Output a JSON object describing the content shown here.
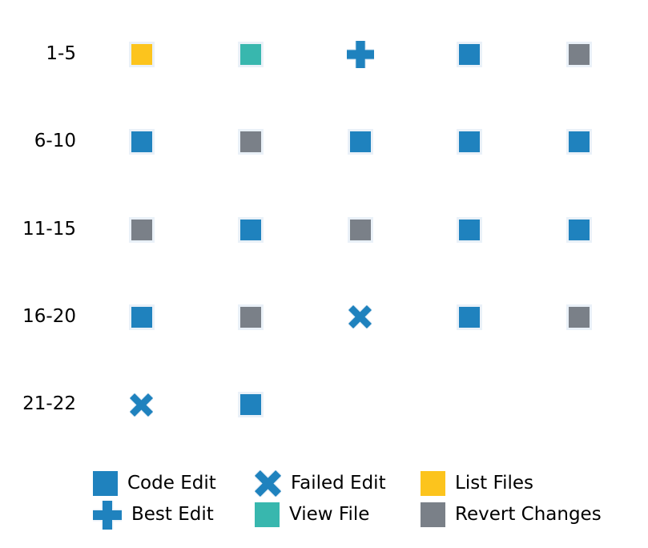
{
  "colors": {
    "code_edit": "#1f82be",
    "failed_edit": "#1f82be",
    "best_edit": "#1f82be",
    "list_files": "#fcc41d",
    "view_file": "#38b7ae",
    "revert_changes": "#7a8088",
    "marker_halo": "#eaf1f8",
    "background": "#ffffff",
    "text": "#000000"
  },
  "chart_data": {
    "type": "scatter",
    "title": "",
    "xlabel": "",
    "ylabel": "",
    "grid": false,
    "legend_position": "bottom",
    "marker_shapes": {
      "code_edit": "square",
      "failed_edit": "x",
      "best_edit": "plus",
      "list_files": "square",
      "view_file": "square",
      "revert_changes": "square"
    },
    "rows": [
      {
        "label": "1-5",
        "icons": [
          "list_files",
          "view_file",
          "best_edit",
          "code_edit",
          "revert_changes"
        ]
      },
      {
        "label": "6-10",
        "icons": [
          "code_edit",
          "revert_changes",
          "code_edit",
          "code_edit",
          "code_edit"
        ]
      },
      {
        "label": "11-15",
        "icons": [
          "revert_changes",
          "code_edit",
          "revert_changes",
          "code_edit",
          "code_edit"
        ]
      },
      {
        "label": "16-20",
        "icons": [
          "code_edit",
          "revert_changes",
          "failed_edit",
          "code_edit",
          "revert_changes"
        ]
      },
      {
        "label": "21-22",
        "icons": [
          "failed_edit",
          "code_edit"
        ]
      }
    ],
    "legend": [
      {
        "label": "Code Edit",
        "type": "code_edit"
      },
      {
        "label": "Failed Edit",
        "type": "failed_edit"
      },
      {
        "label": "List Files",
        "type": "list_files"
      },
      {
        "label": "Best Edit",
        "type": "best_edit"
      },
      {
        "label": "View File",
        "type": "view_file"
      },
      {
        "label": "Revert Changes",
        "type": "revert_changes"
      }
    ]
  }
}
